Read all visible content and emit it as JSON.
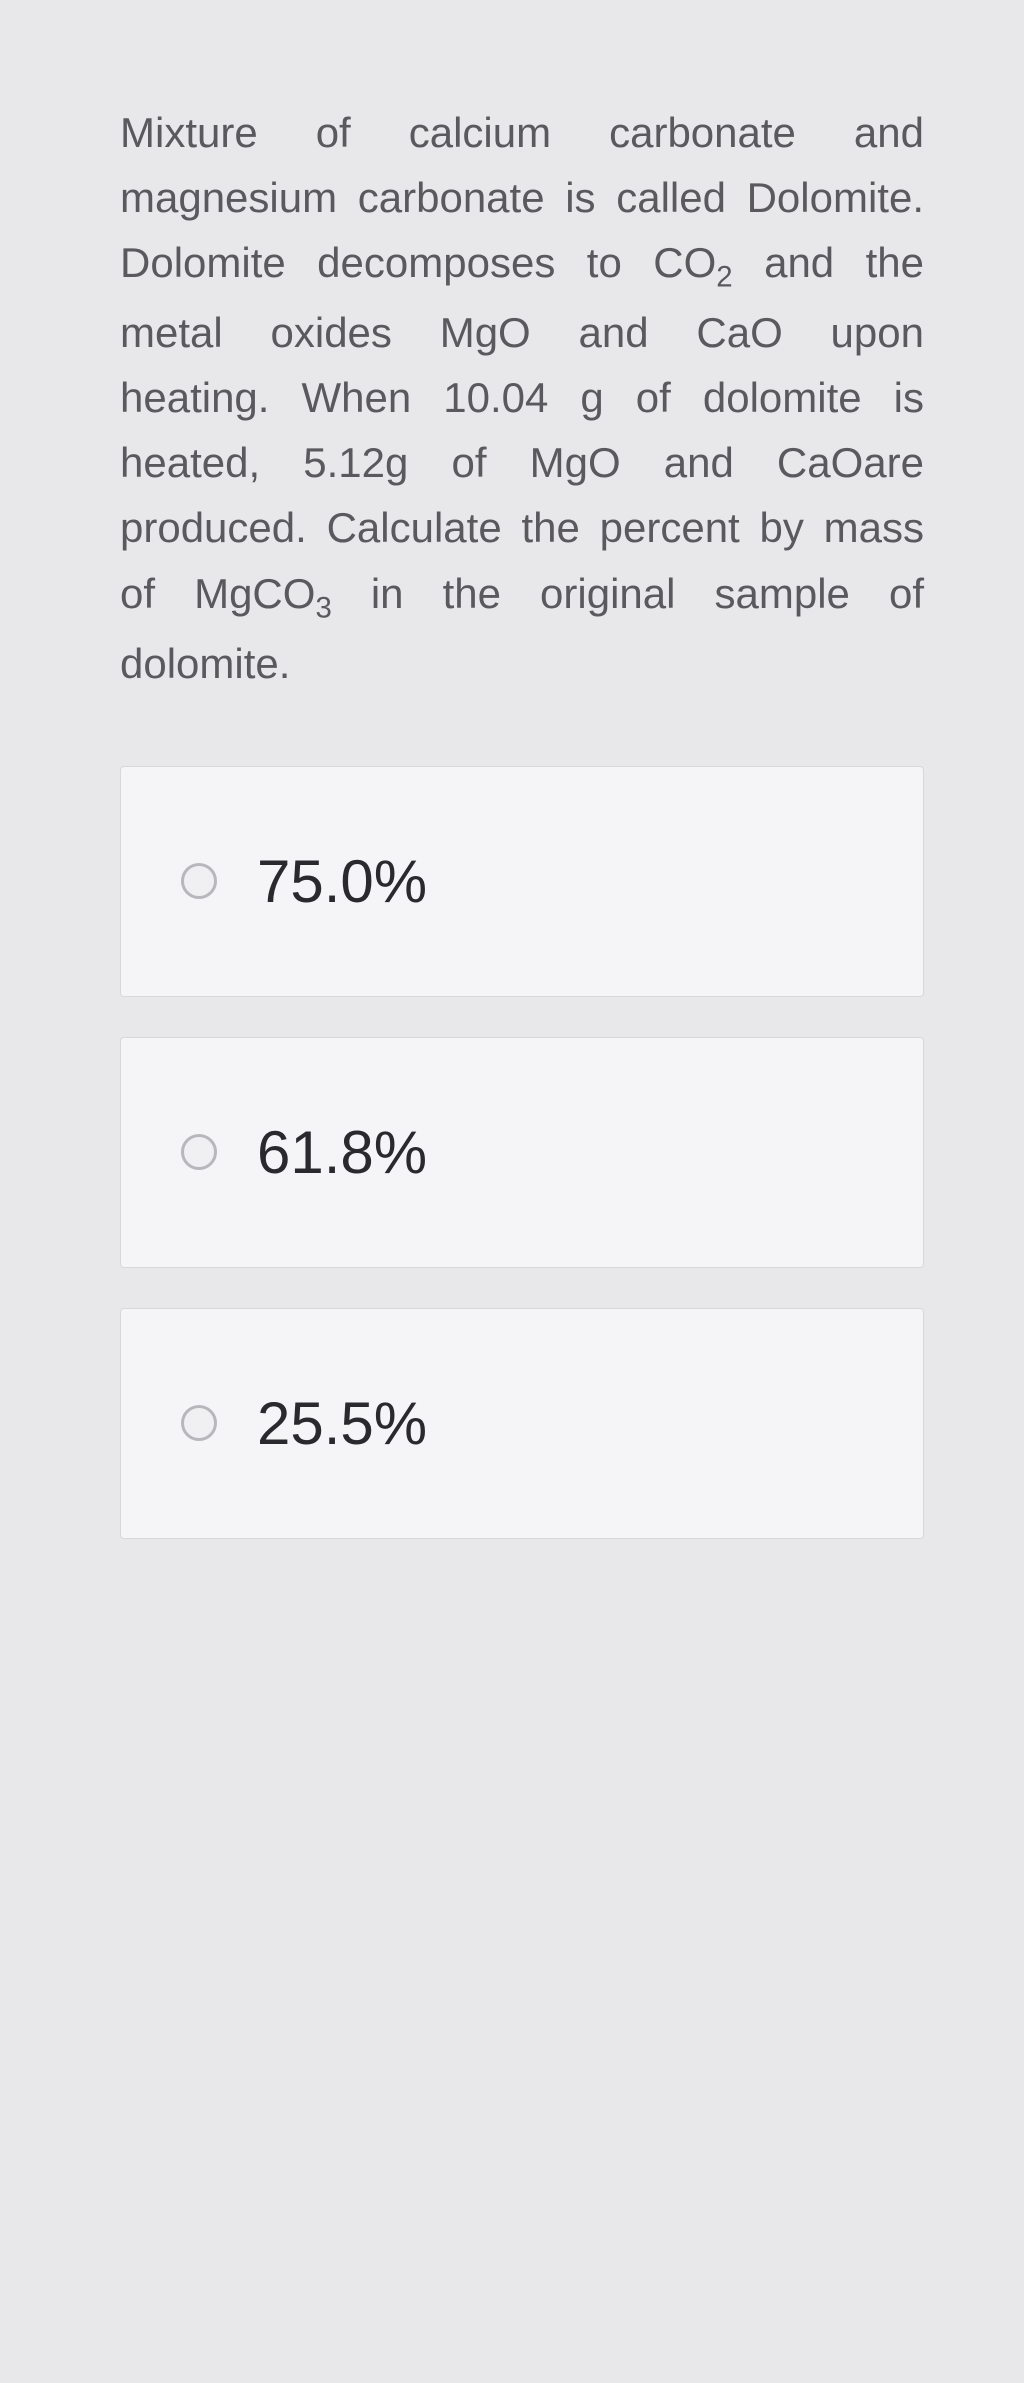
{
  "question": {
    "text_parts": [
      "Mixture of calcium carbonate and magnesium carbonate is called Dolomite. Dolomite decomposes to CO",
      "2",
      " and the metal oxides MgO and CaO upon heating. When 10.04 g of dolomite is heated, 5.12g of MgO and CaOare produced. Calculate the percent by mass of MgCO",
      "3",
      " in the original sample of dolomite."
    ]
  },
  "options": [
    {
      "label": "75.0%"
    },
    {
      "label": "61.8%"
    },
    {
      "label": "25.5%"
    }
  ],
  "styling": {
    "background_color": "#e8e8ea",
    "option_background": "#f5f5f7",
    "option_border": "#d8d8da",
    "text_color": "#5a5a5e",
    "option_text_color": "#2a2a2e",
    "radio_border": "#b8b8bc",
    "question_fontsize": 42,
    "option_fontsize": 60
  }
}
